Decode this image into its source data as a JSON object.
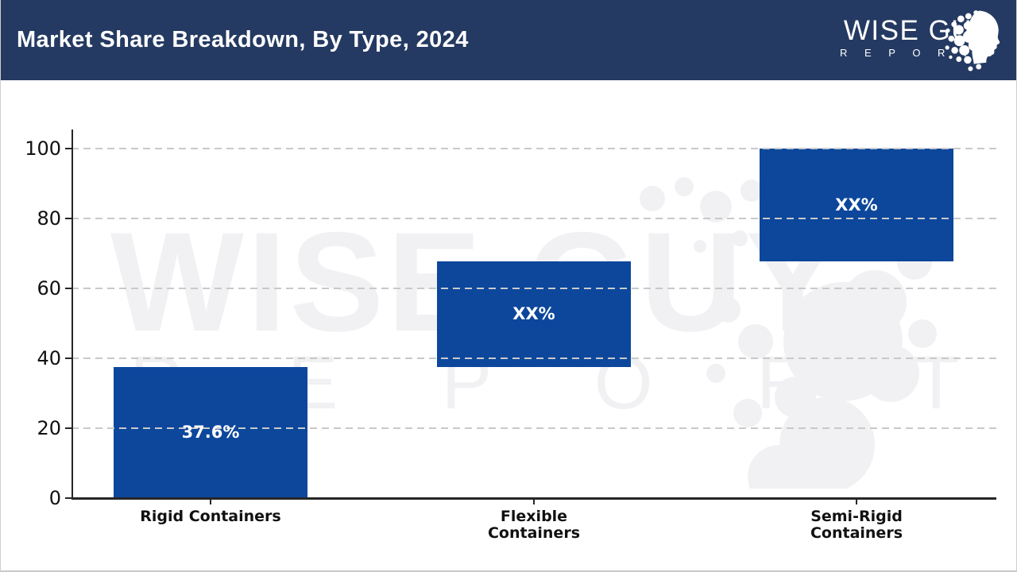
{
  "header": {
    "title": "Market Share Breakdown, By Type, 2024",
    "bg_color": "#243a62",
    "logo": {
      "line1": "WISE GUY",
      "line2": "R E P O R T S"
    }
  },
  "watermark": {
    "line1": "WISE GUY",
    "line2": "R E P O R T S"
  },
  "chart_data": {
    "type": "bar",
    "subtype": "waterfall",
    "title": "Market Share Breakdown, By Type, 2024",
    "xlabel": "",
    "ylabel": "",
    "ylim": [
      0,
      100
    ],
    "yticks": [
      0,
      20,
      40,
      60,
      80,
      100
    ],
    "grid": "horizontal dashed, drawn over bars",
    "legend": "none",
    "bar_color": "#0c479c",
    "value_label_color": "#ffffff",
    "categories": [
      "Rigid Containers",
      "Flexible\nContainers",
      "Semi-Rigid\nContainers"
    ],
    "bars": [
      {
        "category": "Rigid Containers",
        "start": 0,
        "end": 37.6,
        "display_label": "37.6%"
      },
      {
        "category": "Flexible Containers",
        "start": 37.6,
        "end": 67.7,
        "display_label": "XX%"
      },
      {
        "category": "Semi-Rigid Containers",
        "start": 67.7,
        "end": 100,
        "display_label": "XX%"
      }
    ]
  }
}
